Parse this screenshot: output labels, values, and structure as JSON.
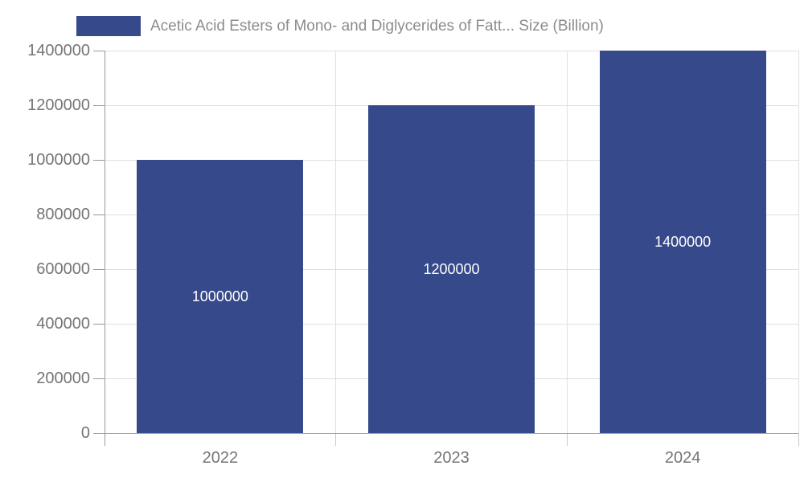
{
  "chart_data": {
    "type": "bar",
    "title": "",
    "legend": "Acetic Acid Esters of Mono- and Diglycerides of Fatt... Size (Billion)",
    "categories": [
      "2022",
      "2023",
      "2024"
    ],
    "values": [
      1000000,
      1200000,
      1400000
    ],
    "data_labels": [
      "1000000",
      "1200000",
      "1400000"
    ],
    "xlabel": "",
    "ylabel": "",
    "ylim": [
      0,
      1400000
    ],
    "ytick_step": 200000,
    "ytick_labels": [
      "0",
      "200000",
      "400000",
      "600000",
      "800000",
      "1000000",
      "1200000",
      "1400000"
    ],
    "grid": true,
    "legend_position": "top-left",
    "colors": {
      "bar": "#36498A",
      "grid": "#E0E0E0",
      "axis": "#999999",
      "minor_tick": "#C9C9C9",
      "axis_text": "#757575",
      "legend_text": "#8C8C8C",
      "bar_label_text": "#FFFFFF"
    }
  }
}
